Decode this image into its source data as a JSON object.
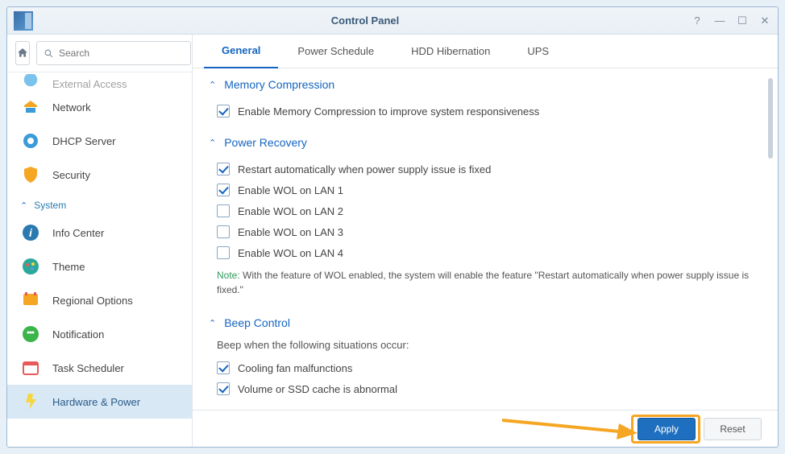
{
  "window": {
    "title": "Control Panel"
  },
  "search": {
    "placeholder": "Search"
  },
  "sidebar": {
    "partial_top": "External Access",
    "items": [
      {
        "label": "Network",
        "icon": "network"
      },
      {
        "label": "DHCP Server",
        "icon": "dhcp"
      },
      {
        "label": "Security",
        "icon": "security"
      }
    ],
    "category": "System",
    "system_items": [
      {
        "label": "Info Center",
        "icon": "info"
      },
      {
        "label": "Theme",
        "icon": "theme"
      },
      {
        "label": "Regional Options",
        "icon": "regional"
      },
      {
        "label": "Notification",
        "icon": "notification"
      },
      {
        "label": "Task Scheduler",
        "icon": "task"
      },
      {
        "label": "Hardware & Power",
        "icon": "hardware",
        "active": true
      }
    ]
  },
  "tabs": [
    "General",
    "Power Schedule",
    "HDD Hibernation",
    "UPS"
  ],
  "active_tab": 0,
  "sections": {
    "memory": {
      "title": "Memory Compression",
      "opt1": {
        "label": "Enable Memory Compression to improve system responsiveness",
        "checked": true
      }
    },
    "power": {
      "title": "Power Recovery",
      "opt1": {
        "label": "Restart automatically when power supply issue is fixed",
        "checked": true
      },
      "opt2": {
        "label": "Enable WOL on LAN 1",
        "checked": true
      },
      "opt3": {
        "label": "Enable WOL on LAN 2",
        "checked": false
      },
      "opt4": {
        "label": "Enable WOL on LAN 3",
        "checked": false
      },
      "opt5": {
        "label": "Enable WOL on LAN 4",
        "checked": false
      },
      "note_label": "Note:",
      "note_text": " With the feature of WOL enabled, the system will enable the feature \"Restart automatically when power supply issue is fixed.\""
    },
    "beep": {
      "title": "Beep Control",
      "desc": "Beep when the following situations occur:",
      "opt1": {
        "label": "Cooling fan malfunctions",
        "checked": true
      },
      "opt2": {
        "label": "Volume or SSD cache is abnormal",
        "checked": true
      }
    }
  },
  "footer": {
    "apply": "Apply",
    "reset": "Reset"
  },
  "colors": {
    "accent": "#1565c0",
    "highlight": "#f5a623"
  }
}
